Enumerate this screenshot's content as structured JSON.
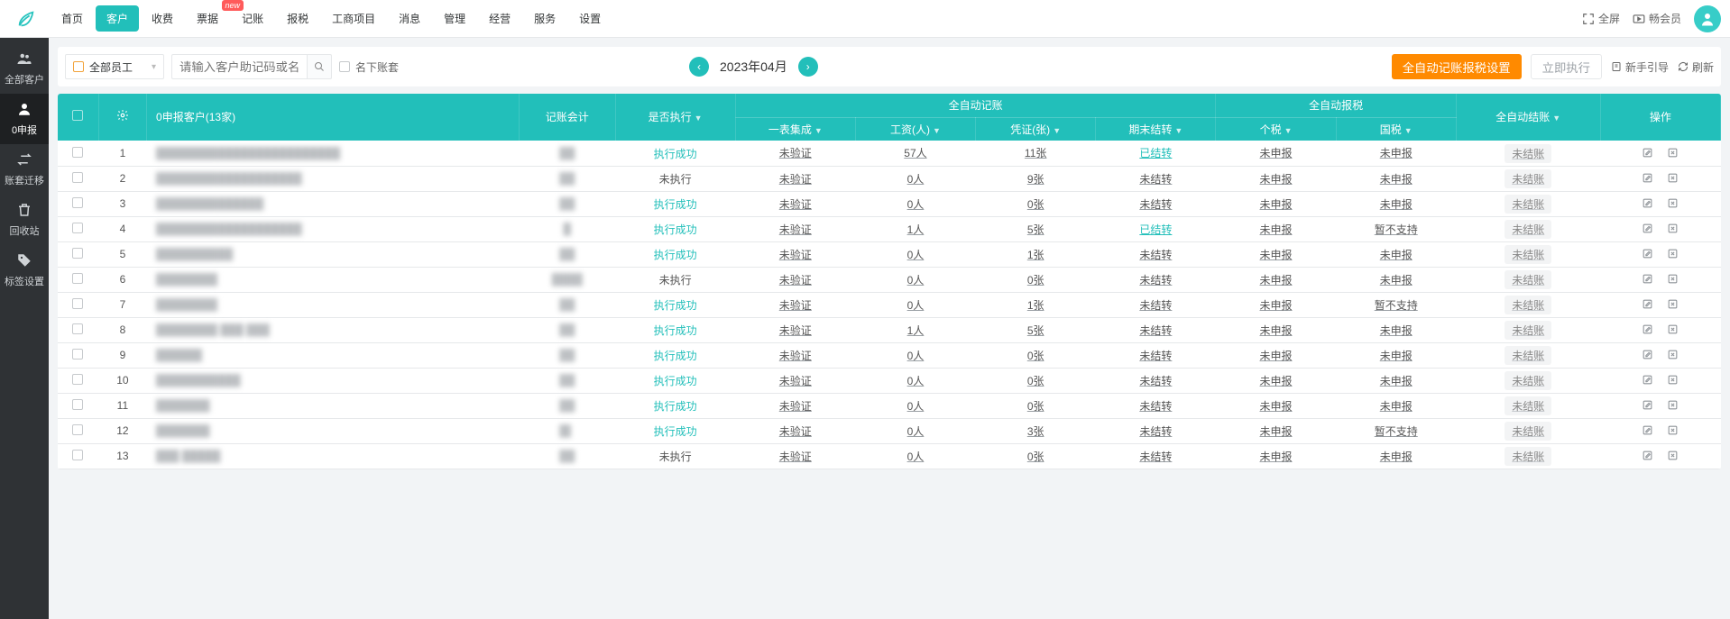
{
  "nav": {
    "items": [
      {
        "label": "首页"
      },
      {
        "label": "客户",
        "active": true
      },
      {
        "label": "收费"
      },
      {
        "label": "票据",
        "new": true
      },
      {
        "label": "记账"
      },
      {
        "label": "报税"
      },
      {
        "label": "工商项目"
      },
      {
        "label": "消息"
      },
      {
        "label": "管理"
      },
      {
        "label": "经营"
      },
      {
        "label": "服务"
      },
      {
        "label": "设置"
      }
    ],
    "right": {
      "fullscreen": "全屏",
      "member": "畅会员"
    }
  },
  "sidebar": [
    {
      "label": "全部客户",
      "icon": "users"
    },
    {
      "label": "0申报",
      "icon": "user",
      "active": true
    },
    {
      "label": "账套迁移",
      "icon": "transfer"
    },
    {
      "label": "回收站",
      "icon": "trash"
    },
    {
      "label": "标签设置",
      "icon": "tag"
    }
  ],
  "toolbar": {
    "employee_label": "全部员工",
    "search_placeholder": "请输入客户助记码或名称",
    "subaccount_label": "名下账套",
    "month": "2023年04月",
    "auto_button": "全自动记账报税设置",
    "exec_button": "立即执行",
    "guide": "新手引导",
    "refresh": "刷新"
  },
  "columns": {
    "customer": "0申报客户(13家)",
    "accountant": "记账会计",
    "execute": "是否执行",
    "group_bookkeeping": "全自动记账",
    "group_tax": "全自动报税",
    "sheet": "一表集成",
    "salary": "工资(人)",
    "voucher": "凭证(张)",
    "period": "期末结转",
    "ptax": "个税",
    "ntax": "国税",
    "close": "全自动结账",
    "operate": "操作"
  },
  "status": {
    "exec_ok": "执行成功",
    "exec_no": "未执行",
    "unverified": "未验证",
    "untransferred": "未结转",
    "transferred": "已结转",
    "undeclared": "未申报",
    "unsupported": "暂不支持",
    "unclosed": "未结账"
  },
  "rows": [
    {
      "idx": 1,
      "name": "████████████████████████",
      "acc": "██",
      "exec": "ok",
      "salary": 57,
      "voucher": 11,
      "period": "transferred",
      "ntax": "undeclared"
    },
    {
      "idx": 2,
      "name": "███████████████████",
      "acc": "██",
      "exec": "no",
      "salary": 0,
      "voucher": 9,
      "period": "untransferred",
      "ntax": "undeclared"
    },
    {
      "idx": 3,
      "name": "██████████████",
      "acc": "██",
      "exec": "ok",
      "salary": 0,
      "voucher": 0,
      "period": "untransferred",
      "ntax": "undeclared"
    },
    {
      "idx": 4,
      "name": "███████████████████",
      "acc": "█",
      "exec": "ok",
      "salary": 1,
      "voucher": 5,
      "period": "transferred",
      "ntax": "unsupported"
    },
    {
      "idx": 5,
      "name": "██████████",
      "acc": "██",
      "exec": "ok",
      "salary": 0,
      "voucher": 1,
      "period": "untransferred",
      "ntax": "undeclared"
    },
    {
      "idx": 6,
      "name": "████████",
      "acc": "████",
      "exec": "no",
      "salary": 0,
      "voucher": 0,
      "period": "untransferred",
      "ntax": "undeclared"
    },
    {
      "idx": 7,
      "name": "████████",
      "acc": "██",
      "exec": "ok",
      "salary": 0,
      "voucher": 1,
      "period": "untransferred",
      "ntax": "unsupported"
    },
    {
      "idx": 8,
      "name": "████████  ███  ███",
      "acc": "██",
      "exec": "ok",
      "salary": 1,
      "voucher": 5,
      "period": "untransferred",
      "ntax": "undeclared"
    },
    {
      "idx": 9,
      "name": "██████",
      "acc": "██",
      "exec": "ok",
      "salary": 0,
      "voucher": 0,
      "period": "untransferred",
      "ntax": "undeclared"
    },
    {
      "idx": 10,
      "name": "███████████",
      "acc": "██",
      "exec": "ok",
      "salary": 0,
      "voucher": 0,
      "period": "untransferred",
      "ntax": "undeclared"
    },
    {
      "idx": 11,
      "name": "███████",
      "acc": "██",
      "exec": "ok",
      "salary": 0,
      "voucher": 0,
      "period": "untransferred",
      "ntax": "undeclared"
    },
    {
      "idx": 12,
      "name": "███████",
      "acc": "█▌",
      "exec": "ok",
      "salary": 0,
      "voucher": 3,
      "period": "untransferred",
      "ntax": "unsupported"
    },
    {
      "idx": 13,
      "name": "███  █████",
      "acc": "██",
      "exec": "no",
      "salary": 0,
      "voucher": 0,
      "period": "untransferred",
      "ntax": "undeclared"
    }
  ],
  "suffix": {
    "person": "人",
    "sheet": "张"
  }
}
